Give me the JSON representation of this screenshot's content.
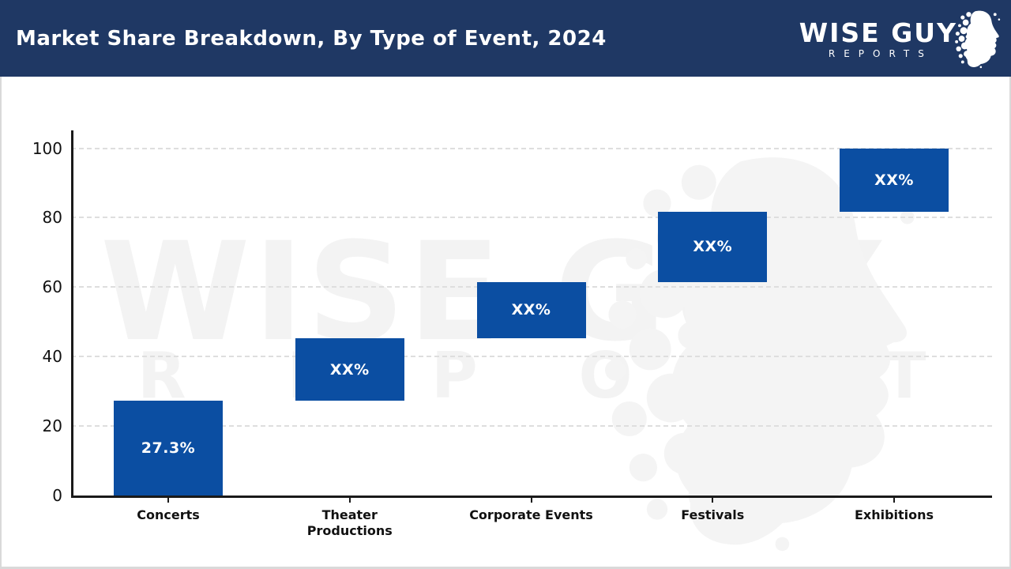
{
  "header": {
    "title": "Market Share Breakdown, By Type of Event, 2024",
    "bg_color": "#1f3864",
    "logo": {
      "line1": "WISE GUY",
      "line2": "REPORTS"
    }
  },
  "watermark": {
    "line1": "WISE GUY",
    "line2": "R E P O R T S"
  },
  "chart_data": {
    "type": "bar",
    "subtype": "waterfall",
    "title": "Market Share Breakdown, By Type of Event, 2024",
    "categories": [
      "Concerts",
      "Theater\nProductions",
      "Corporate Events",
      "Festivals",
      "Exhibitions"
    ],
    "bars": [
      {
        "category": "Concerts",
        "start": 0,
        "end": 27.3,
        "label": "27.3%"
      },
      {
        "category": "Theater Productions",
        "start": 27.3,
        "end": 45.2,
        "label": "XX%"
      },
      {
        "category": "Corporate Events",
        "start": 45.4,
        "end": 61.5,
        "label": "XX%"
      },
      {
        "category": "Festivals",
        "start": 61.5,
        "end": 81.8,
        "label": "XX%"
      },
      {
        "category": "Exhibitions",
        "start": 81.8,
        "end": 100,
        "label": "XX%"
      }
    ],
    "yticks": [
      0,
      20,
      40,
      60,
      80,
      100
    ],
    "ylim": [
      0,
      105
    ],
    "xlabel": "",
    "ylabel": "",
    "grid": "horizontal-dashed",
    "legend": "none",
    "colors": {
      "bar": "#0b4ea2",
      "bar_label": "#ffffff",
      "grid": "#dedede",
      "axis": "#1a1a1a",
      "tick_text": "#111111"
    }
  }
}
